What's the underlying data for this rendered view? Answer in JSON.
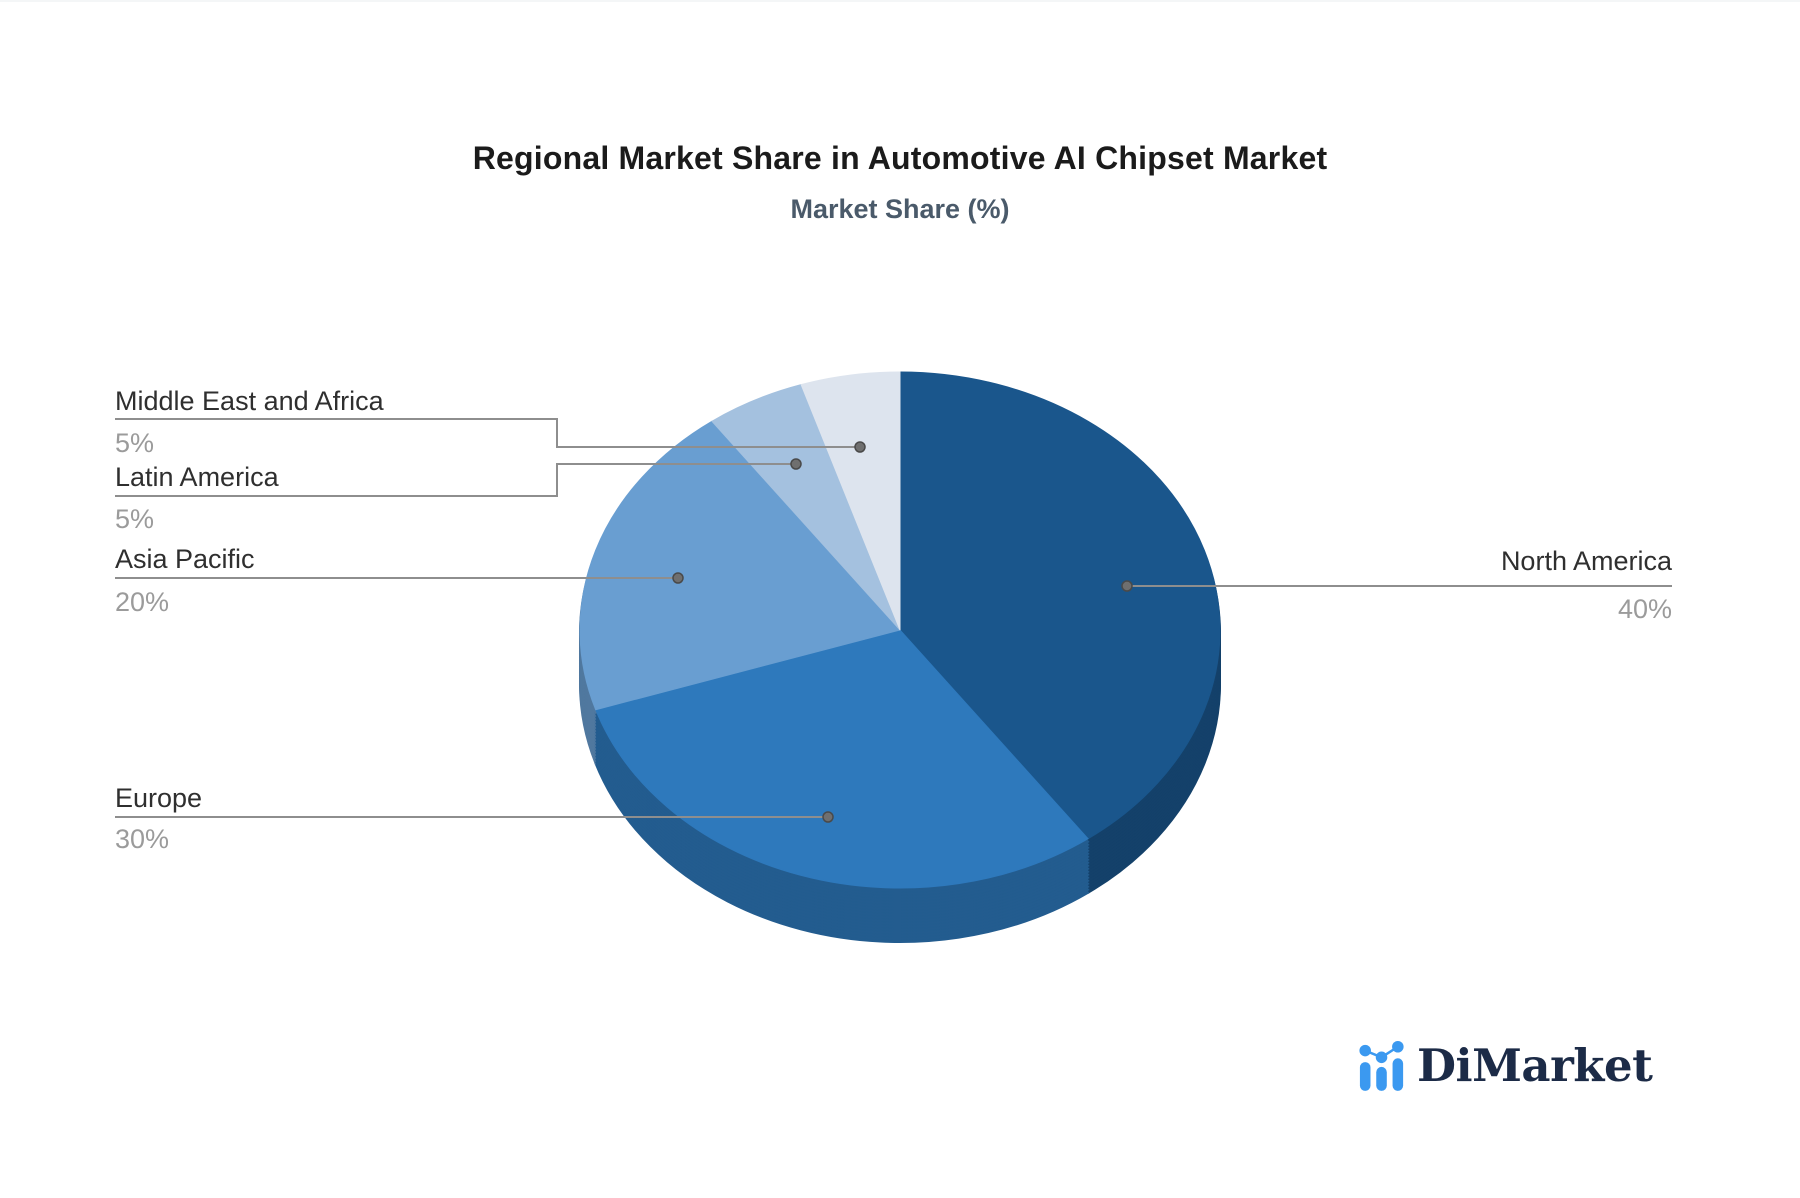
{
  "page": {
    "title": "Regional Market Share in Automotive AI Chipset Market",
    "subtitle": "Market Share (%)"
  },
  "chart_data": {
    "type": "pie",
    "title": "Regional Market Share in Automotive AI Chipset Market",
    "subtitle": "Market Share (%)",
    "unit": "%",
    "start_angle": "12-o-clock",
    "direction": "clockwise",
    "effect_3d": true,
    "legend_position": "callout-labels",
    "slices": [
      {
        "label": "North America",
        "value": 40,
        "pct_label": "40%",
        "color": "#1A568C"
      },
      {
        "label": "Europe",
        "value": 30,
        "pct_label": "30%",
        "color": "#2E79BC"
      },
      {
        "label": "Asia Pacific",
        "value": 20,
        "pct_label": "20%",
        "color": "#699ED1"
      },
      {
        "label": "Latin America",
        "value": 5,
        "pct_label": "5%",
        "color": "#A4C1DF"
      },
      {
        "label": "Middle East and Africa",
        "value": 5,
        "pct_label": "5%",
        "color": "#DDE4EE"
      }
    ]
  },
  "branding": {
    "logo_text": "DiMarket",
    "logo_icon": "bar-line-chart-icon",
    "logo_icon_color": "#3B99F0",
    "logo_text_color": "#1C2B47"
  },
  "style": {
    "background": "#FFFFFF",
    "leader_line_color": "#8E8E8E",
    "dot_fill": "#6F6F6F",
    "dot_stroke": "#4A4A4A",
    "label_color": "#2F2F2F",
    "pct_color": "#9B9B9B",
    "title_color": "#1B1B1B",
    "subtitle_color": "#4A5A6A"
  }
}
